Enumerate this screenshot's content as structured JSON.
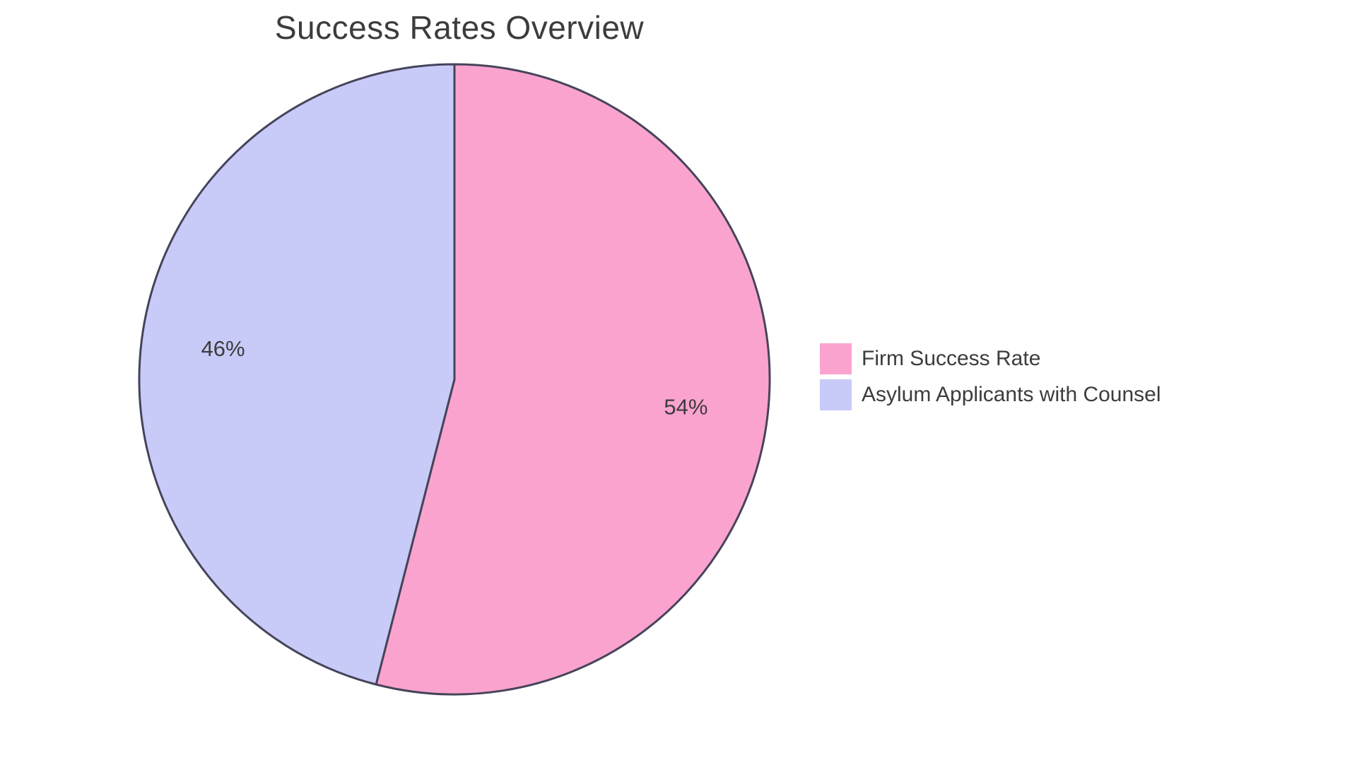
{
  "page": {
    "background_color": "#FFFFFF"
  },
  "chart_data": {
    "type": "pie",
    "title": "Success Rates Overview",
    "slices": [
      {
        "label": "Firm Success Rate",
        "value": 54,
        "percent_label": "54%",
        "color": "#FBA3CF"
      },
      {
        "label": "Asylum Applicants with Counsel",
        "value": 46,
        "percent_label": "46%",
        "color": "#C8CBF8"
      }
    ],
    "start_angle_deg": -90,
    "direction": "clockwise",
    "stroke_color": "#46445A",
    "stroke_width": 3,
    "label_color": "#3C3C3C",
    "title_color": "#3C3C3C",
    "legend_position": "right"
  }
}
